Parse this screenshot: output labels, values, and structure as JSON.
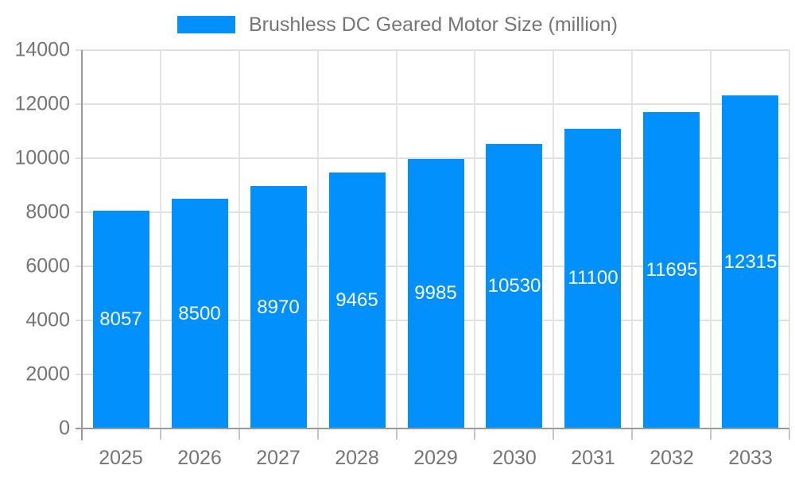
{
  "legend": {
    "label": "Brushless DC Geared Motor Size (million)"
  },
  "colors": {
    "bar": "#0190fc",
    "axis": "#999999",
    "grid_h": "#e0e0e0",
    "grid_v": "#e4e4e4",
    "tick": "#c4c4c4",
    "text": "#757575",
    "bar_label": "#ffffff",
    "background": "#ffffff"
  },
  "chart_data": {
    "type": "bar",
    "title": "Brushless DC Geared Motor Size (million)",
    "series": [
      {
        "name": "Brushless DC Geared Motor Size (million)",
        "values": [
          8057,
          8500,
          8970,
          9465,
          9985,
          10530,
          11100,
          11695,
          12315
        ]
      }
    ],
    "categories": [
      "2025",
      "2026",
      "2027",
      "2028",
      "2029",
      "2030",
      "2031",
      "2032",
      "2033"
    ],
    "bar_labels": [
      "8057",
      "8500",
      "8970",
      "9465",
      "9985",
      "10530",
      "11100",
      "11695",
      "12315"
    ],
    "xlabel": "",
    "ylabel": "",
    "ylim": [
      0,
      14000
    ],
    "yticks": [
      0,
      2000,
      4000,
      6000,
      8000,
      10000,
      12000,
      14000
    ],
    "grid": true,
    "legend_position": "top",
    "bar_label_position": "inside-center"
  }
}
